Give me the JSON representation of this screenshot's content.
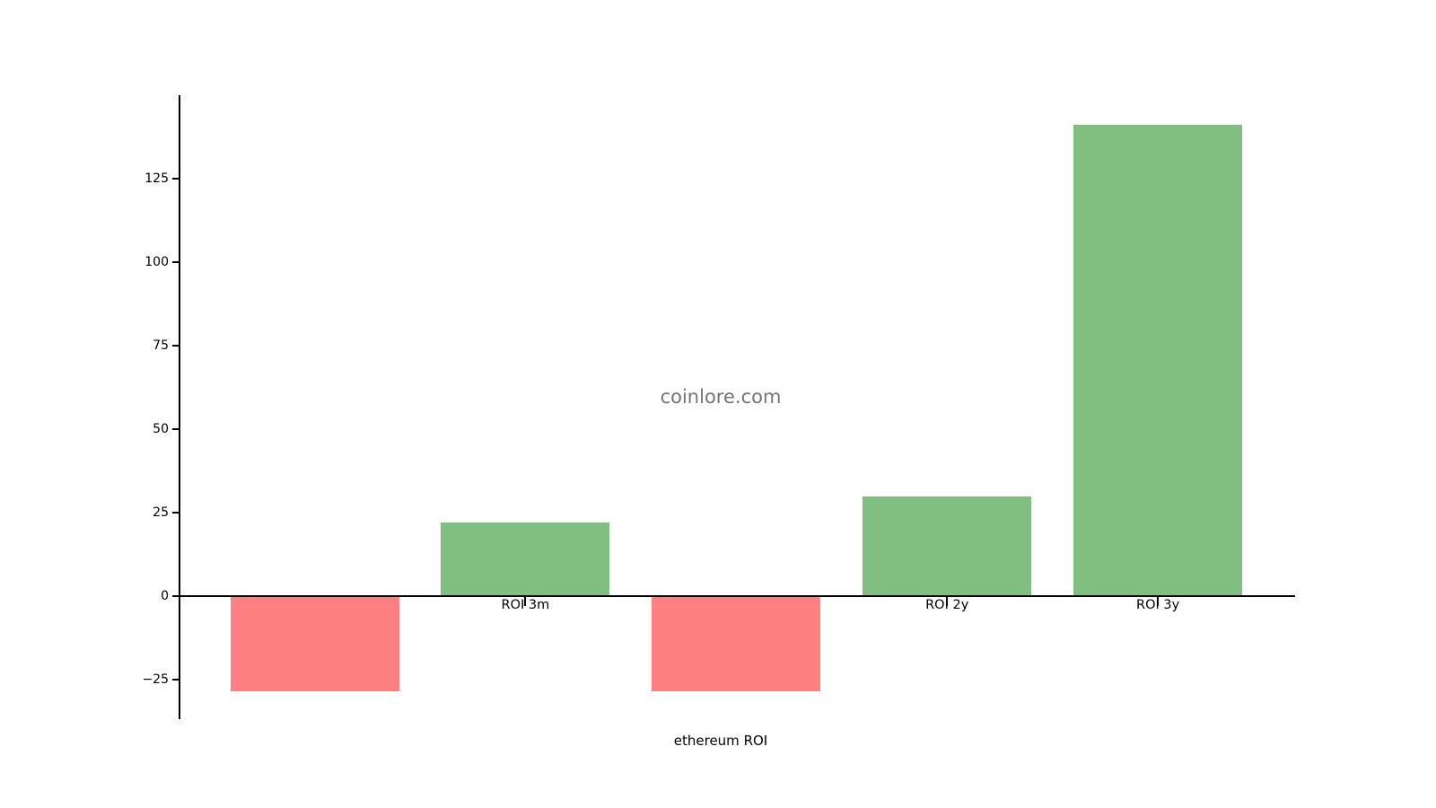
{
  "page": {
    "background": "#ffffff"
  },
  "watermark": {
    "text": "coinlore.com",
    "color": "#757575"
  },
  "chart_data": {
    "type": "bar",
    "title": "",
    "xlabel": "ethereum ROI",
    "ylabel": "",
    "categories": [
      "",
      "ROI 3m",
      "",
      "ROI 2y",
      "ROI 3y"
    ],
    "values": [
      -28.3,
      22.1,
      -28.3,
      29.9,
      141.1
    ],
    "bar_colors": [
      "#ff8080",
      "#80bf80",
      "#ff8080",
      "#80bf80",
      "#80bf80"
    ],
    "positive_color": "#80bf80",
    "negative_color": "#ff8080",
    "y_ticks": [
      125,
      100,
      75,
      50,
      25,
      0,
      -25
    ],
    "y_tick_labels": [
      "125",
      "100",
      "75",
      "50",
      "25",
      "0",
      "−25"
    ],
    "ylim": [
      -36.5,
      150
    ],
    "grid": false,
    "legend": false,
    "axis_color": "#000000",
    "background_color": "#ffffff"
  }
}
